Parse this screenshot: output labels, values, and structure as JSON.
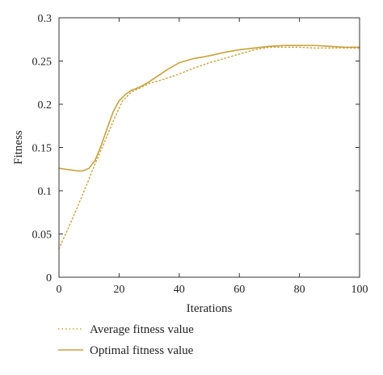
{
  "chart_data": {
    "type": "line",
    "xlabel": "Iterations",
    "ylabel": "Fitness",
    "xlim": [
      0,
      100
    ],
    "ylim": [
      0,
      0.3
    ],
    "x_ticks": [
      "0",
      "20",
      "40",
      "60",
      "80",
      "100"
    ],
    "y_ticks": [
      "0",
      "0.05",
      "0.1",
      "0.15",
      "0.2",
      "0.25",
      "0.3"
    ],
    "grid": false,
    "legend_position": "bottom",
    "series": [
      {
        "name": "Average fitness value",
        "style": "dotted",
        "color": "#c8a23a",
        "x": [
          0,
          3,
          6,
          9,
          12,
          15,
          18,
          21,
          24,
          27,
          30,
          35,
          40,
          45,
          50,
          55,
          60,
          65,
          70,
          75,
          80,
          85,
          90,
          95,
          100
        ],
        "y": [
          0.033,
          0.056,
          0.08,
          0.105,
          0.131,
          0.155,
          0.18,
          0.203,
          0.214,
          0.219,
          0.224,
          0.229,
          0.235,
          0.242,
          0.248,
          0.253,
          0.258,
          0.263,
          0.266,
          0.266,
          0.266,
          0.265,
          0.265,
          0.265,
          0.265
        ]
      },
      {
        "name": "Optimal fitness value",
        "style": "solid",
        "color": "#c8a23a",
        "x": [
          0,
          2,
          4,
          6,
          8,
          10,
          12,
          14,
          16,
          18,
          20,
          22,
          24,
          27,
          30,
          33,
          36,
          40,
          45,
          50,
          55,
          60,
          65,
          70,
          75,
          80,
          85,
          90,
          95,
          100
        ],
        "y": [
          0.126,
          0.125,
          0.124,
          0.123,
          0.123,
          0.126,
          0.135,
          0.152,
          0.172,
          0.191,
          0.204,
          0.211,
          0.216,
          0.22,
          0.226,
          0.233,
          0.24,
          0.248,
          0.253,
          0.256,
          0.26,
          0.263,
          0.265,
          0.267,
          0.268,
          0.268,
          0.268,
          0.267,
          0.266,
          0.266
        ]
      }
    ]
  }
}
